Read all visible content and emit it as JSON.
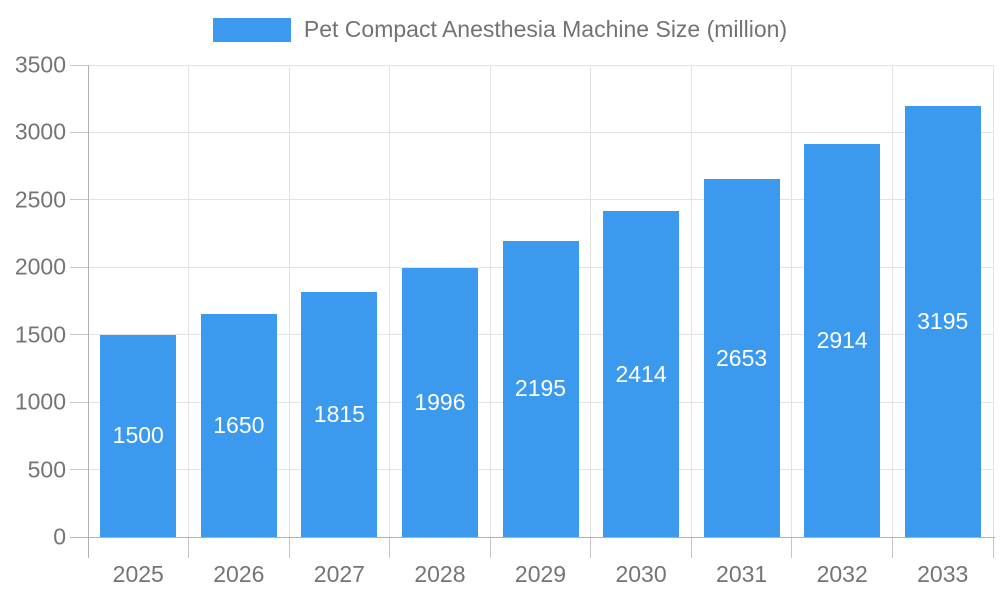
{
  "legend": {
    "label": "Pet Compact Anesthesia Machine Size (million)"
  },
  "chart_data": {
    "type": "bar",
    "title": "Pet Compact Anesthesia Machine Size (million)",
    "categories": [
      "2025",
      "2026",
      "2027",
      "2028",
      "2029",
      "2030",
      "2031",
      "2032",
      "2033"
    ],
    "values": [
      1500,
      1650,
      1815,
      1996,
      2195,
      2414,
      2653,
      2914,
      3195
    ],
    "xlabel": "",
    "ylabel": "",
    "ylim": [
      0,
      3500
    ],
    "yticks": [
      0,
      500,
      1000,
      1500,
      2000,
      2500,
      3000,
      3500
    ],
    "grid": true,
    "legend_position": "top-center",
    "bar_labels_inside": true
  },
  "colors": {
    "bar": "#3B99EE",
    "bar_label": "#ffffff",
    "grid": "#e3e3e3",
    "axis": "#b0b0b0",
    "tick": "#c6c6c6",
    "text": "#747474",
    "background": "#ffffff"
  }
}
